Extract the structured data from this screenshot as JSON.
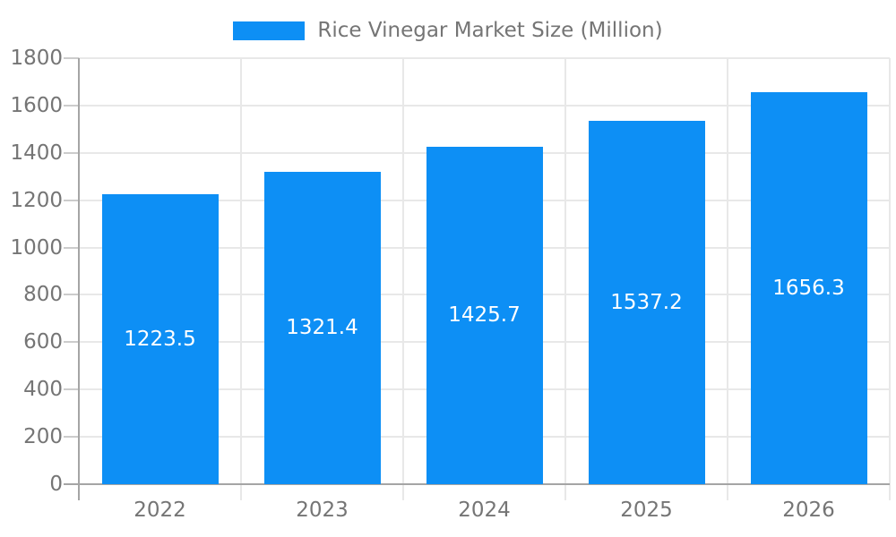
{
  "chart_data": {
    "type": "bar",
    "title": "Rice Vinegar Market Size (Million)",
    "categories": [
      "2022",
      "2023",
      "2024",
      "2025",
      "2026"
    ],
    "series": [
      {
        "name": "Rice Vinegar Market Size (Million)",
        "values": [
          1223.5,
          1321.4,
          1425.7,
          1537.2,
          1656.3
        ]
      }
    ],
    "xlabel": "",
    "ylabel": "",
    "ylim": [
      0,
      1800
    ],
    "ytick_step": 200,
    "yticks": [
      0,
      200,
      400,
      600,
      800,
      1000,
      1200,
      1400,
      1600,
      1800
    ],
    "grid": true,
    "legend_position": "top-center",
    "value_label_position": "inside-center"
  },
  "legend": {
    "label": "Rice Vinegar Market Size (Million)"
  },
  "colors": {
    "bar": "#0d8ff5",
    "value_label": "#ffffff",
    "axis_line": "#a5a5a5",
    "gridline": "#e8e8e8",
    "tick_mark": "#cccccc",
    "tick_label": "#757575",
    "legend_text": "#757575",
    "background": "#ffffff"
  }
}
